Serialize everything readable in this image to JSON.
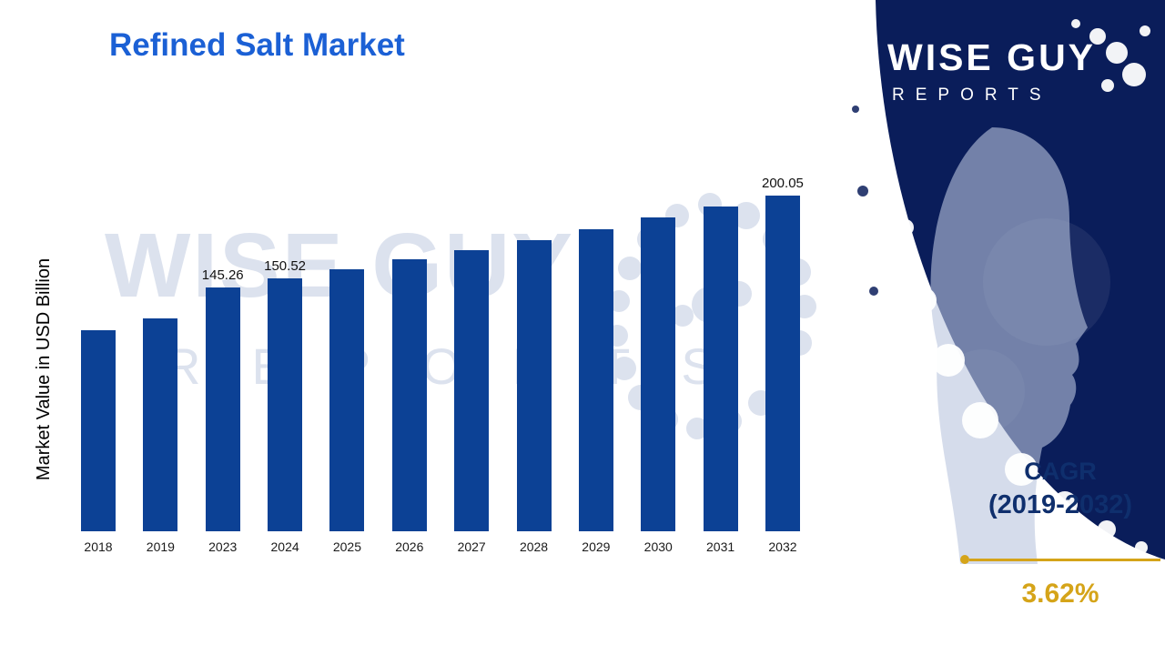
{
  "title": "Refined Salt Market",
  "y_axis_label": "Market Value in USD Billion",
  "watermark": {
    "line1": "WISE GUY",
    "line2": "REPORTS"
  },
  "brand": {
    "name_line1": "WISE GUY",
    "name_line2": "REPORTS"
  },
  "cagr": {
    "label": "CAGR",
    "period": "(2019-2032)",
    "value": "3.62%"
  },
  "colors": {
    "bar": "#0c4195",
    "title": "#1b60d5",
    "panel": "#0a1d5a",
    "gold": "#d5a419",
    "cagr_text": "#0f2f6d",
    "watermark": "#dce2ee",
    "face": "#b9c4dd",
    "axis_text": "#000000"
  },
  "chart_data": {
    "type": "bar",
    "title": "Refined Salt Market",
    "xlabel": "",
    "ylabel": "Market Value in USD Billion",
    "ylim": [
      0,
      210
    ],
    "grid": false,
    "legend": "none",
    "categories": [
      "2018",
      "2019",
      "2023",
      "2024",
      "2025",
      "2026",
      "2027",
      "2028",
      "2029",
      "2030",
      "2031",
      "2032"
    ],
    "values": [
      120.1,
      127.0,
      145.26,
      150.52,
      156.2,
      161.9,
      167.6,
      173.5,
      180.0,
      186.8,
      193.5,
      200.05
    ],
    "value_labels": {
      "2023": "145.26",
      "2024": "150.52",
      "2032": "200.05"
    }
  }
}
